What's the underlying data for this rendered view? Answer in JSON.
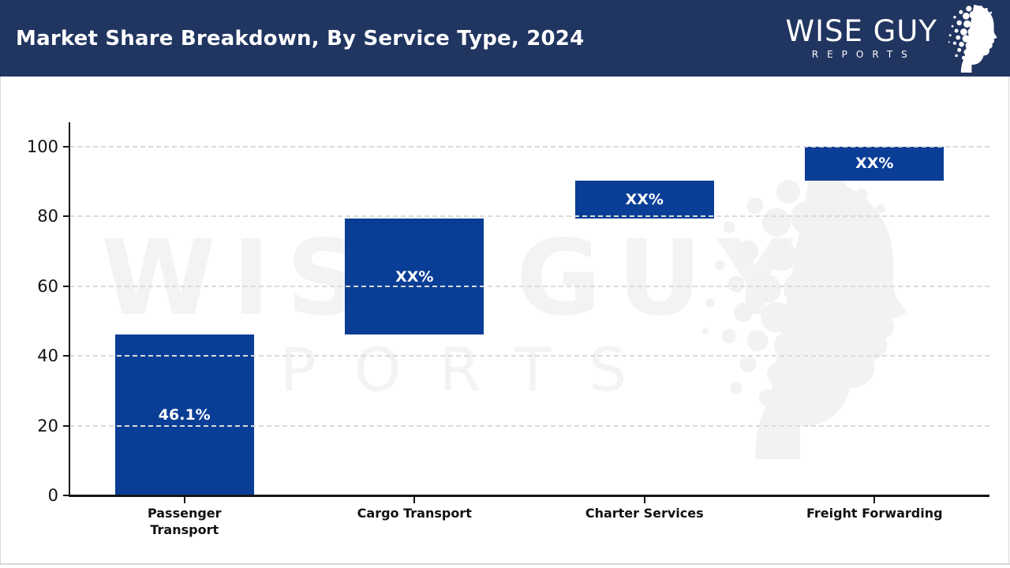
{
  "header": {
    "title": "Market Share Breakdown, By Service Type, 2024",
    "bg_color": "#213561",
    "logo": {
      "line1": "WISE GUY",
      "line2": "REPORTS",
      "head_icon": "dotted-face-profile"
    }
  },
  "watermark": {
    "line1": "WISE GUY",
    "line2": "REPORTS",
    "head_icon": "dotted-face-profile",
    "color": "#f3f3f3"
  },
  "chart_data": {
    "type": "bar",
    "subtype": "waterfall",
    "title": "Market Share Breakdown, By Service Type, 2024",
    "categories": [
      "Passenger Transport",
      "Cargo Transport",
      "Charter Services",
      "Freight Forwarding"
    ],
    "category_lines": [
      [
        "Passenger",
        "Transport"
      ],
      [
        "Cargo Transport"
      ],
      [
        "Charter Services"
      ],
      [
        "Freight Forwarding"
      ]
    ],
    "series": [
      {
        "name": "Market share (%)",
        "segments": [
          {
            "category": "Passenger Transport",
            "start": 0,
            "end": 46.1,
            "label": "46.1%"
          },
          {
            "category": "Cargo Transport",
            "start": 46.1,
            "end": 79.4,
            "label": "XX%"
          },
          {
            "category": "Charter Services",
            "start": 79.4,
            "end": 90.3,
            "label": "XX%"
          },
          {
            "category": "Freight Forwarding",
            "start": 90.3,
            "end": 100,
            "label": "XX%"
          }
        ]
      }
    ],
    "xlabel": "",
    "ylabel": "",
    "ylim": [
      0,
      100
    ],
    "yticks": [
      0,
      20,
      40,
      60,
      80,
      100
    ],
    "grid": "horizontal-dashed",
    "legend": "none",
    "bar_color": "#0a3e96",
    "bar_label_color": "#ffffff",
    "axis_color": "#151515"
  }
}
